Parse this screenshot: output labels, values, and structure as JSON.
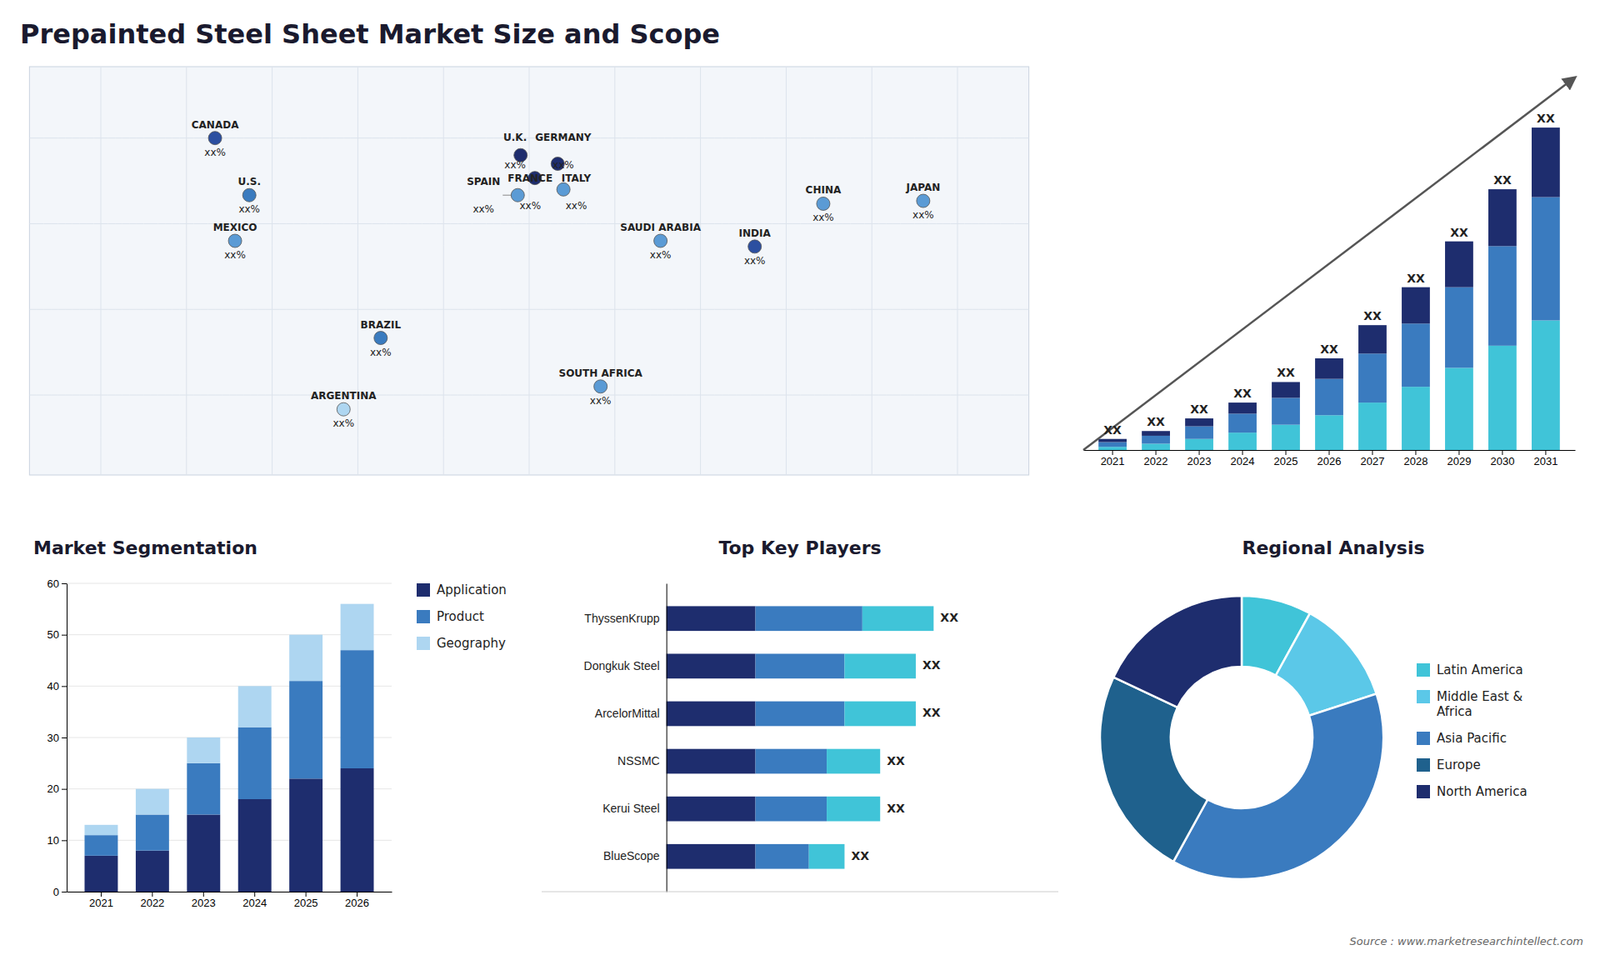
{
  "chart_data": [
    {
      "type": "map",
      "title": "Prepainted Steel Sheet Market Size and Scope",
      "categories": [
        "CANADA",
        "U.S.",
        "MEXICO",
        "BRAZIL",
        "ARGENTINA",
        "U.K.",
        "FRANCE",
        "SPAIN",
        "GERMANY",
        "ITALY",
        "SAUDI ARABIA",
        "SOUTH AFRICA",
        "CHINA",
        "INDIA",
        "JAPAN"
      ],
      "labels": [
        "xx%",
        "xx%",
        "xx%",
        "xx%",
        "xx%",
        "xx%",
        "xx%",
        "xx%",
        "xx%",
        "xx%",
        "xx%",
        "xx%",
        "xx%",
        "xx%",
        "xx%"
      ],
      "x": [
        -110,
        -98,
        -103,
        -52,
        -65,
        -3,
        2,
        -4,
        10,
        12,
        46,
        25,
        103,
        79,
        138
      ],
      "y": [
        60,
        40,
        24,
        -10,
        -35,
        54,
        46,
        40,
        51,
        42,
        24,
        -27,
        37,
        22,
        38
      ],
      "colors": [
        "#2c4fa0",
        "#3a7bbf",
        "#5b9bd5",
        "#3a7bbf",
        "#aed6f1",
        "#1e2d6e",
        "#1e2d6e",
        "#5b9bd5",
        "#1e2d6e",
        "#5b9bd5",
        "#5b9bd5",
        "#5b9bd5",
        "#5b9bd5",
        "#2c4fa0",
        "#5b9bd5"
      ],
      "xlim": [
        -175,
        175
      ],
      "ylim": [
        -58,
        85
      ],
      "tick_labels": false,
      "annotations": [
        "Source : www.marketresearchintellect.com"
      ]
    },
    {
      "type": "bar",
      "stacked": true,
      "categories": [
        "2021",
        "2022",
        "2023",
        "2024",
        "2025",
        "2026",
        "2027",
        "2028",
        "2029",
        "2030",
        "2031"
      ],
      "series": [
        {
          "color": "#40c4d8",
          "values": [
            1.0,
            2.0,
            3.5,
            5.5,
            8.0,
            11.0,
            15.0,
            20.0,
            26.0,
            33.0,
            41.0
          ]
        },
        {
          "color": "#3a7bbf",
          "values": [
            1.5,
            2.5,
            4.0,
            6.0,
            8.5,
            11.5,
            15.5,
            20.0,
            25.5,
            31.5,
            39.0
          ]
        },
        {
          "color": "#1e2d6e",
          "values": [
            1.0,
            1.5,
            2.5,
            3.5,
            5.0,
            6.5,
            9.0,
            11.5,
            14.5,
            18.0,
            22.0
          ]
        }
      ],
      "ylim": [
        0,
        116
      ],
      "tick_labels": "x",
      "annotations": [
        "XX",
        "XX",
        "XX",
        "XX",
        "XX",
        "XX",
        "XX",
        "XX",
        "XX",
        "XX",
        "XX"
      ]
    },
    {
      "type": "bar",
      "stacked": true,
      "title": "Market Segmentation",
      "categories": [
        "2021",
        "2022",
        "2023",
        "2024",
        "2025",
        "2026"
      ],
      "series": [
        {
          "name": "Application",
          "color": "#1e2d6e",
          "values": [
            7,
            8,
            15,
            18,
            22,
            24
          ]
        },
        {
          "name": "Product",
          "color": "#3a7bbf",
          "values": [
            4,
            7,
            10,
            14,
            19,
            23
          ]
        },
        {
          "name": "Geography",
          "color": "#aed6f1",
          "values": [
            2,
            5,
            5,
            8,
            9,
            9
          ]
        }
      ],
      "ylim": [
        0,
        60
      ],
      "yticks": [
        0,
        10,
        20,
        30,
        40,
        50,
        60
      ],
      "grid": true,
      "legend": "right"
    },
    {
      "type": "bar",
      "orientation": "horizontal",
      "stacked": true,
      "title": "Top Key Players",
      "categories": [
        "ThyssenKrupp",
        "Dongkuk Steel",
        "ArcelorMittal",
        "NSSMC",
        "Kerui Steel",
        "BlueScope"
      ],
      "series": [
        {
          "color": "#1e2d6e",
          "values": [
            5,
            5,
            5,
            5,
            5,
            5
          ]
        },
        {
          "color": "#3a7bbf",
          "values": [
            6,
            5,
            5,
            4,
            4,
            3
          ]
        },
        {
          "color": "#40c4d8",
          "values": [
            4,
            4,
            4,
            3,
            3,
            2
          ]
        }
      ],
      "xlim": [
        -7,
        22
      ],
      "tick_labels": "y",
      "annotations": [
        "XX",
        "XX",
        "XX",
        "XX",
        "XX",
        "XX"
      ]
    },
    {
      "type": "pie",
      "title": "Regional Analysis",
      "categories": [
        "Latin America",
        "Middle East &\nAfrica",
        "Asia Pacific",
        "Europe",
        "North America"
      ],
      "values": [
        8,
        12,
        38,
        24,
        18
      ],
      "colors": [
        "#40c4d8",
        "#5bc8e8",
        "#3a7bbf",
        "#1f618d",
        "#1e2d6e"
      ],
      "legend": "right"
    }
  ]
}
